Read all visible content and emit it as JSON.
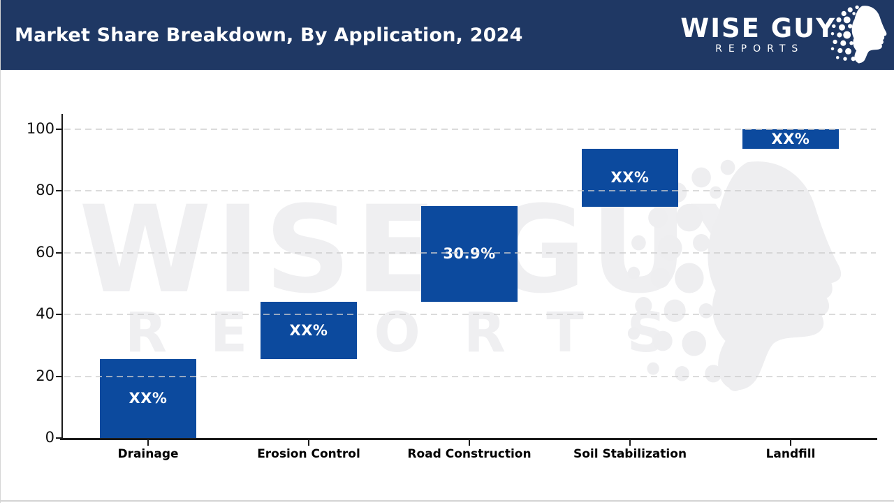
{
  "header": {
    "title": "Market Share Breakdown, By Application, 2024",
    "logo": {
      "wordmark": "WISE GUY",
      "subtext": "REPORTS",
      "icon": "dotted-head-profile-icon"
    }
  },
  "watermark": {
    "wordmark": "WISE GUY",
    "subtext": "REPORTS",
    "icon": "dotted-head-profile-icon"
  },
  "colors": {
    "header_bg": "#1f3864",
    "bar": "#0c4a9e",
    "axis": "#1a1a1a",
    "gridline": "#d8d8d8",
    "watermark": "#efeff1",
    "bar_label_text": "#ffffff",
    "title_text": "#ffffff"
  },
  "chart_data": {
    "type": "bar",
    "variant": "floating-segment-waterfall",
    "title": "Market Share Breakdown, By Application, 2024",
    "xlabel": "",
    "ylabel": "",
    "categories": [
      "Drainage",
      "Erosion Control",
      "Road Construction",
      "Soil Stabilization",
      "Landfill"
    ],
    "segments": [
      {
        "category": "Drainage",
        "start": 0,
        "end": 25.6,
        "label": "XX%"
      },
      {
        "category": "Erosion Control",
        "start": 25.6,
        "end": 44.1,
        "label": "XX%"
      },
      {
        "category": "Road Construction",
        "start": 44.1,
        "end": 75.0,
        "label": "30.9%"
      },
      {
        "category": "Soil Stabilization",
        "start": 74.9,
        "end": 93.5,
        "label": "XX%"
      },
      {
        "category": "Landfill",
        "start": 93.5,
        "end": 100.0,
        "label": "XX%"
      }
    ],
    "yticks": [
      0,
      20,
      40,
      60,
      80,
      100
    ],
    "ylim": [
      0,
      105
    ],
    "grid": {
      "horizontal": true,
      "style": "dashed"
    },
    "legend": "none"
  }
}
